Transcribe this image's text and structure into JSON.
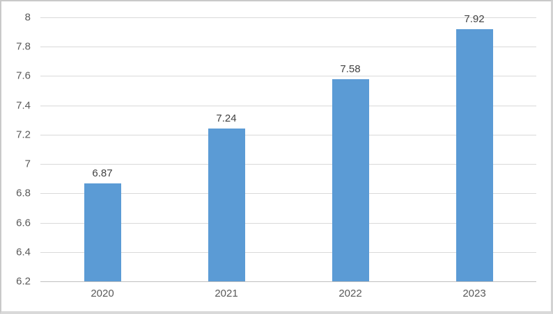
{
  "chart_data": {
    "type": "bar",
    "title": "",
    "xlabel": "",
    "ylabel": "",
    "categories": [
      "2020",
      "2021",
      "2022",
      "2023"
    ],
    "values": [
      6.87,
      7.24,
      7.58,
      7.92
    ],
    "value_labels": [
      "6.87",
      "7.24",
      "7.58",
      "7.92"
    ],
    "ylim": [
      6.2,
      8
    ],
    "y_tick_labels": [
      "8",
      "7.8",
      "7.6",
      "7.4",
      "7.2",
      "7",
      "6.8",
      "6.6",
      "6.4",
      "6.2"
    ],
    "y_tick_values": [
      8,
      7.8,
      7.6,
      7.4,
      7.2,
      7,
      6.8,
      6.6,
      6.4,
      6.2
    ],
    "grid": "horizontal",
    "legend": "none",
    "colors": {
      "bar": "#5b9bd5",
      "gridline": "#d9d9d9",
      "axis_line": "#bfbfbf",
      "tick_label": "#595959",
      "value_label": "#404040"
    }
  }
}
